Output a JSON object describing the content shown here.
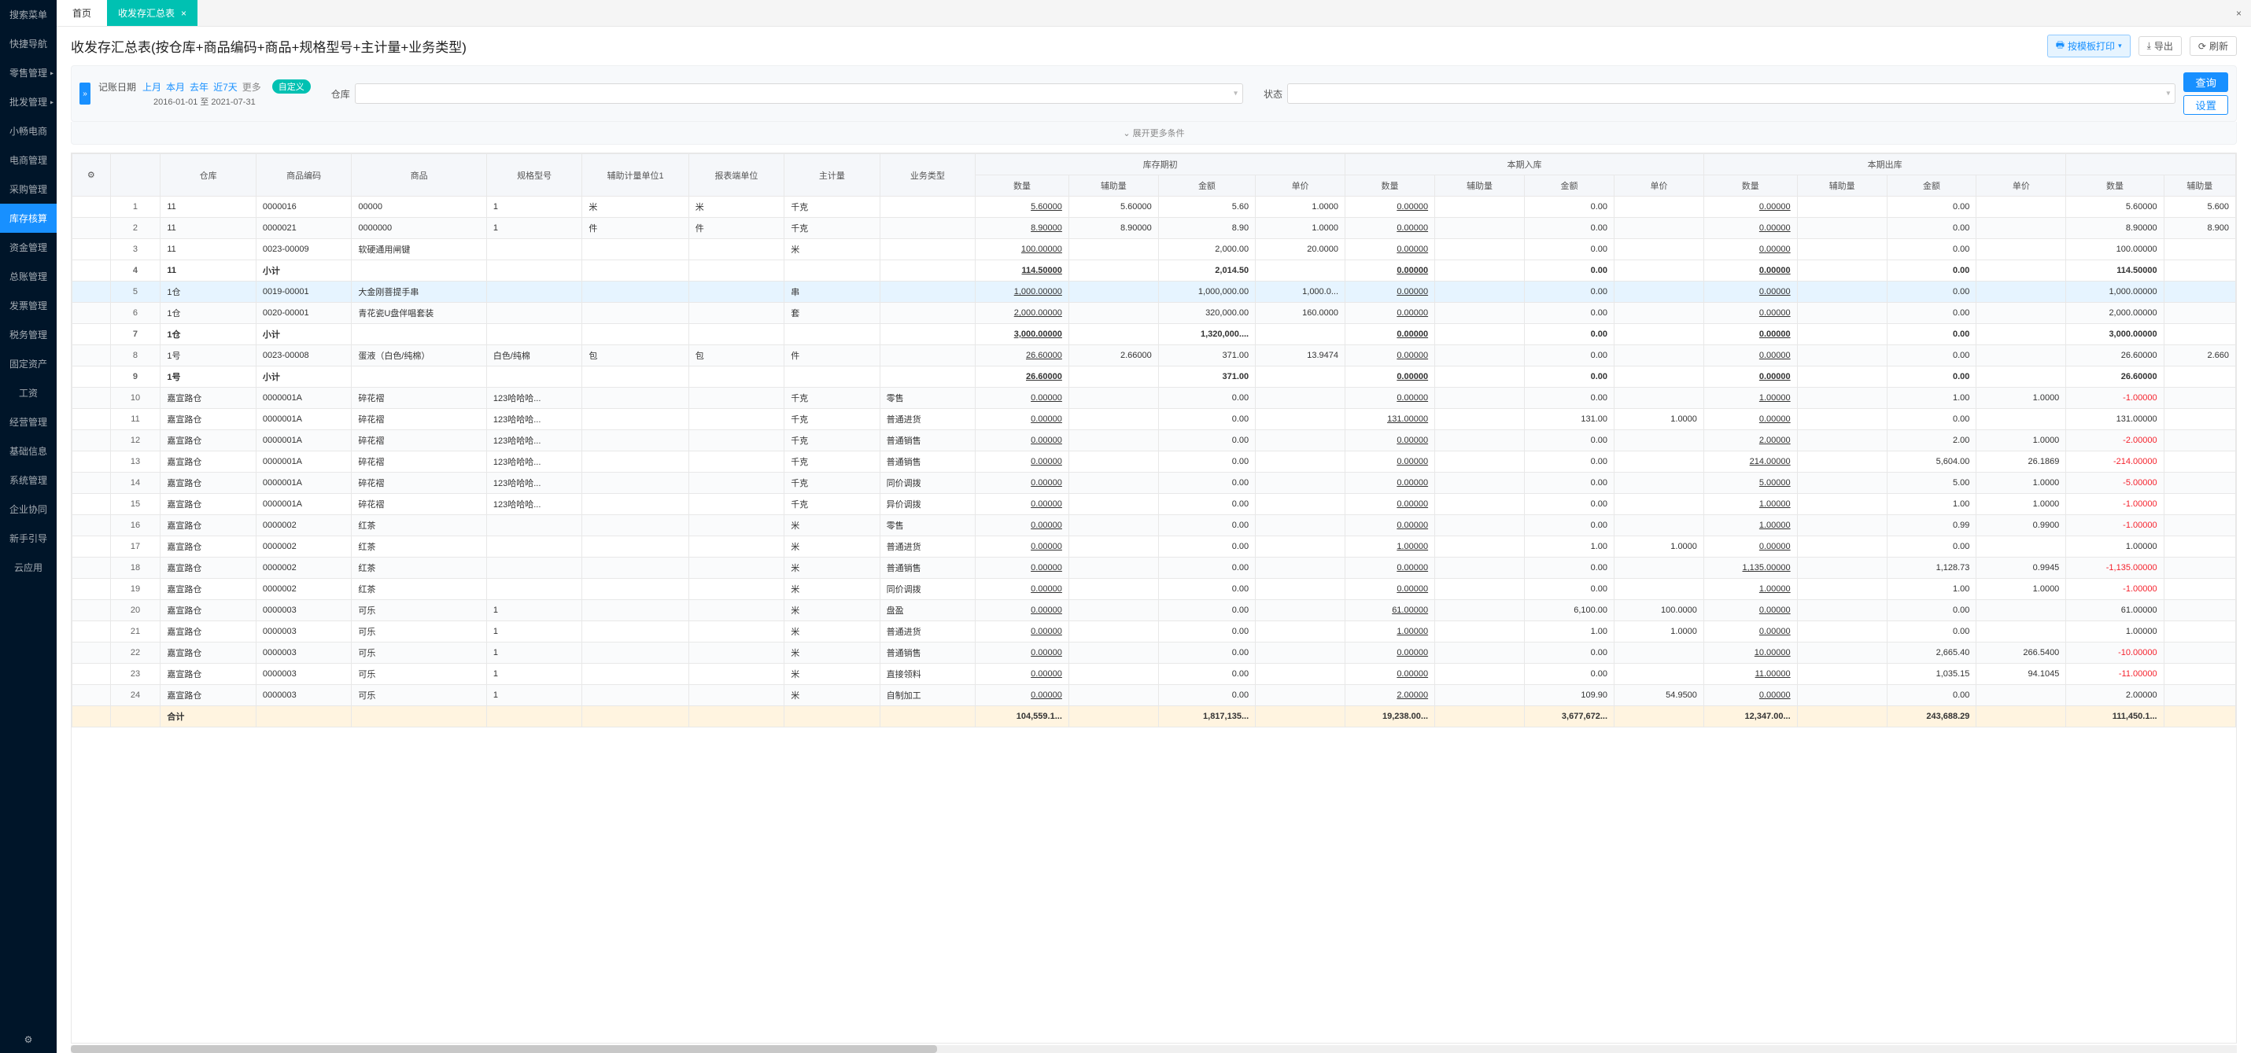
{
  "sidebar": {
    "items": [
      {
        "label": "搜索菜单"
      },
      {
        "label": "快捷导航"
      },
      {
        "label": "零售管理",
        "arrow": true
      },
      {
        "label": "批发管理",
        "arrow": true
      },
      {
        "label": "小畅电商"
      },
      {
        "label": "电商管理"
      },
      {
        "label": "采购管理"
      },
      {
        "label": "库存核算",
        "active": true
      },
      {
        "label": "资金管理"
      },
      {
        "label": "总账管理"
      },
      {
        "label": "发票管理"
      },
      {
        "label": "税务管理"
      },
      {
        "label": "固定资产"
      },
      {
        "label": "工资"
      },
      {
        "label": "经营管理"
      },
      {
        "label": "基础信息"
      },
      {
        "label": "系统管理"
      },
      {
        "label": "企业协同"
      },
      {
        "label": "新手引导"
      },
      {
        "label": "云应用"
      }
    ]
  },
  "tabs": {
    "home": "首页",
    "active": "收发存汇总表",
    "close_all": "×"
  },
  "header": {
    "title": "收发存汇总表(按仓库+商品编码+商品+规格型号+主计量+业务类型)",
    "print": "按模板打印",
    "export": "导出",
    "refresh": "刷新"
  },
  "filter": {
    "date_label": "记账日期",
    "quick": [
      "上月",
      "本月",
      "去年",
      "近7天",
      "更多"
    ],
    "pill": "自定义",
    "range": "2016-01-01 至 2021-07-31",
    "f1": "仓库",
    "f2": "状态",
    "search": "查询",
    "setting": "设置",
    "expand": "展开更多条件"
  },
  "table": {
    "group_headers": [
      "库存期初",
      "本期入库",
      "本期出库"
    ],
    "cols": [
      "仓库",
      "商品编码",
      "商品",
      "规格型号",
      "辅助计量单位1",
      "报表端单位",
      "主计量",
      "业务类型"
    ],
    "num_cols": [
      "数量",
      "辅助量",
      "金额",
      "单价"
    ],
    "rows": [
      {
        "idx": "1",
        "c": [
          "11",
          "0000016",
          "00000",
          "1",
          "米",
          "米",
          "千克",
          ""
        ],
        "n": [
          "5.60000",
          "5.60000",
          "5.60",
          "1.0000",
          "0.00000",
          "",
          "0.00",
          "",
          "0.00000",
          "",
          "0.00",
          "",
          "5.60000",
          "5.600"
        ]
      },
      {
        "idx": "2",
        "c": [
          "11",
          "0000021",
          "0000000",
          "1",
          "件",
          "件",
          "千克",
          ""
        ],
        "n": [
          "8.90000",
          "8.90000",
          "8.90",
          "1.0000",
          "0.00000",
          "",
          "0.00",
          "",
          "0.00000",
          "",
          "0.00",
          "",
          "8.90000",
          "8.900"
        ]
      },
      {
        "idx": "3",
        "c": [
          "11",
          "0023-00009",
          "软硬通用闸键",
          "",
          "",
          "",
          "米",
          ""
        ],
        "n": [
          "100.00000",
          "",
          "2,000.00",
          "20.0000",
          "0.00000",
          "",
          "0.00",
          "",
          "0.00000",
          "",
          "0.00",
          "",
          "100.00000",
          ""
        ]
      },
      {
        "idx": "4",
        "sub": true,
        "c": [
          "11",
          "小计",
          "",
          "",
          "",
          "",
          "",
          ""
        ],
        "n": [
          "114.50000",
          "",
          "2,014.50",
          "",
          "0.00000",
          "",
          "0.00",
          "",
          "0.00000",
          "",
          "0.00",
          "",
          "114.50000",
          ""
        ]
      },
      {
        "idx": "5",
        "hl": true,
        "c": [
          "1仓",
          "0019-00001",
          "大金刚菩提手串",
          "",
          "",
          "",
          "串",
          ""
        ],
        "n": [
          "1,000.00000",
          "",
          "1,000,000.00",
          "1,000.0...",
          "0.00000",
          "",
          "0.00",
          "",
          "0.00000",
          "",
          "0.00",
          "",
          "1,000.00000",
          ""
        ]
      },
      {
        "idx": "6",
        "c": [
          "1仓",
          "0020-00001",
          "青花瓷U盘伴唱套装",
          "",
          "",
          "",
          "套",
          ""
        ],
        "n": [
          "2,000.00000",
          "",
          "320,000.00",
          "160.0000",
          "0.00000",
          "",
          "0.00",
          "",
          "0.00000",
          "",
          "0.00",
          "",
          "2,000.00000",
          ""
        ]
      },
      {
        "idx": "7",
        "sub": true,
        "c": [
          "1仓",
          "小计",
          "",
          "",
          "",
          "",
          "",
          ""
        ],
        "n": [
          "3,000.00000",
          "",
          "1,320,000....",
          "",
          "0.00000",
          "",
          "0.00",
          "",
          "0.00000",
          "",
          "0.00",
          "",
          "3,000.00000",
          ""
        ]
      },
      {
        "idx": "8",
        "c": [
          "1号",
          "0023-00008",
          "蛋液（白色/纯棉）",
          "白色/纯棉",
          "包",
          "包",
          "件",
          ""
        ],
        "n": [
          "26.60000",
          "2.66000",
          "371.00",
          "13.9474",
          "0.00000",
          "",
          "0.00",
          "",
          "0.00000",
          "",
          "0.00",
          "",
          "26.60000",
          "2.660"
        ]
      },
      {
        "idx": "9",
        "sub": true,
        "c": [
          "1号",
          "小计",
          "",
          "",
          "",
          "",
          "",
          ""
        ],
        "n": [
          "26.60000",
          "",
          "371.00",
          "",
          "0.00000",
          "",
          "0.00",
          "",
          "0.00000",
          "",
          "0.00",
          "",
          "26.60000",
          ""
        ]
      },
      {
        "idx": "10",
        "c": [
          "嘉宣路仓",
          "0000001A",
          "碎花褶",
          "123哈哈哈...",
          "",
          "",
          "千克",
          "零售"
        ],
        "n": [
          "0.00000",
          "",
          "0.00",
          "",
          "0.00000",
          "",
          "0.00",
          "",
          "1.00000",
          "",
          "1.00",
          "1.0000",
          "-1.00000",
          ""
        ],
        "neg": [
          12
        ]
      },
      {
        "idx": "11",
        "c": [
          "嘉宣路仓",
          "0000001A",
          "碎花褶",
          "123哈哈哈...",
          "",
          "",
          "千克",
          "普通进货"
        ],
        "n": [
          "0.00000",
          "",
          "0.00",
          "",
          "131.00000",
          "",
          "131.00",
          "1.0000",
          "0.00000",
          "",
          "0.00",
          "",
          "131.00000",
          ""
        ]
      },
      {
        "idx": "12",
        "c": [
          "嘉宣路仓",
          "0000001A",
          "碎花褶",
          "123哈哈哈...",
          "",
          "",
          "千克",
          "普通销售"
        ],
        "n": [
          "0.00000",
          "",
          "0.00",
          "",
          "0.00000",
          "",
          "0.00",
          "",
          "2.00000",
          "",
          "2.00",
          "1.0000",
          "-2.00000",
          ""
        ],
        "neg": [
          12
        ]
      },
      {
        "idx": "13",
        "c": [
          "嘉宣路仓",
          "0000001A",
          "碎花褶",
          "123哈哈哈...",
          "",
          "",
          "千克",
          "普通销售"
        ],
        "n": [
          "0.00000",
          "",
          "0.00",
          "",
          "0.00000",
          "",
          "0.00",
          "",
          "214.00000",
          "",
          "5,604.00",
          "26.1869",
          "-214.00000",
          ""
        ],
        "neg": [
          12
        ]
      },
      {
        "idx": "14",
        "c": [
          "嘉宣路仓",
          "0000001A",
          "碎花褶",
          "123哈哈哈...",
          "",
          "",
          "千克",
          "同价调拨"
        ],
        "n": [
          "0.00000",
          "",
          "0.00",
          "",
          "0.00000",
          "",
          "0.00",
          "",
          "5.00000",
          "",
          "5.00",
          "1.0000",
          "-5.00000",
          ""
        ],
        "neg": [
          12
        ]
      },
      {
        "idx": "15",
        "c": [
          "嘉宣路仓",
          "0000001A",
          "碎花褶",
          "123哈哈哈...",
          "",
          "",
          "千克",
          "异价调拨"
        ],
        "n": [
          "0.00000",
          "",
          "0.00",
          "",
          "0.00000",
          "",
          "0.00",
          "",
          "1.00000",
          "",
          "1.00",
          "1.0000",
          "-1.00000",
          ""
        ],
        "neg": [
          12
        ]
      },
      {
        "idx": "16",
        "c": [
          "嘉宣路仓",
          "0000002",
          "红茶",
          "",
          "",
          "",
          "米",
          "零售"
        ],
        "n": [
          "0.00000",
          "",
          "0.00",
          "",
          "0.00000",
          "",
          "0.00",
          "",
          "1.00000",
          "",
          "0.99",
          "0.9900",
          "-1.00000",
          ""
        ],
        "neg": [
          12
        ]
      },
      {
        "idx": "17",
        "c": [
          "嘉宣路仓",
          "0000002",
          "红茶",
          "",
          "",
          "",
          "米",
          "普通进货"
        ],
        "n": [
          "0.00000",
          "",
          "0.00",
          "",
          "1.00000",
          "",
          "1.00",
          "1.0000",
          "0.00000",
          "",
          "0.00",
          "",
          "1.00000",
          ""
        ]
      },
      {
        "idx": "18",
        "c": [
          "嘉宣路仓",
          "0000002",
          "红茶",
          "",
          "",
          "",
          "米",
          "普通销售"
        ],
        "n": [
          "0.00000",
          "",
          "0.00",
          "",
          "0.00000",
          "",
          "0.00",
          "",
          "1,135.00000",
          "",
          "1,128.73",
          "0.9945",
          "-1,135.00000",
          ""
        ],
        "neg": [
          12
        ]
      },
      {
        "idx": "19",
        "c": [
          "嘉宣路仓",
          "0000002",
          "红茶",
          "",
          "",
          "",
          "米",
          "同价调拨"
        ],
        "n": [
          "0.00000",
          "",
          "0.00",
          "",
          "0.00000",
          "",
          "0.00",
          "",
          "1.00000",
          "",
          "1.00",
          "1.0000",
          "-1.00000",
          ""
        ],
        "neg": [
          12
        ]
      },
      {
        "idx": "20",
        "c": [
          "嘉宣路仓",
          "0000003",
          "可乐",
          "1",
          "",
          "",
          "米",
          "盘盈"
        ],
        "n": [
          "0.00000",
          "",
          "0.00",
          "",
          "61.00000",
          "",
          "6,100.00",
          "100.0000",
          "0.00000",
          "",
          "0.00",
          "",
          "61.00000",
          ""
        ]
      },
      {
        "idx": "21",
        "c": [
          "嘉宣路仓",
          "0000003",
          "可乐",
          "1",
          "",
          "",
          "米",
          "普通进货"
        ],
        "n": [
          "0.00000",
          "",
          "0.00",
          "",
          "1.00000",
          "",
          "1.00",
          "1.0000",
          "0.00000",
          "",
          "0.00",
          "",
          "1.00000",
          ""
        ]
      },
      {
        "idx": "22",
        "c": [
          "嘉宣路仓",
          "0000003",
          "可乐",
          "1",
          "",
          "",
          "米",
          "普通销售"
        ],
        "n": [
          "0.00000",
          "",
          "0.00",
          "",
          "0.00000",
          "",
          "0.00",
          "",
          "10.00000",
          "",
          "2,665.40",
          "266.5400",
          "-10.00000",
          ""
        ],
        "neg": [
          12
        ]
      },
      {
        "idx": "23",
        "c": [
          "嘉宣路仓",
          "0000003",
          "可乐",
          "1",
          "",
          "",
          "米",
          "直接领料"
        ],
        "n": [
          "0.00000",
          "",
          "0.00",
          "",
          "0.00000",
          "",
          "0.00",
          "",
          "11.00000",
          "",
          "1,035.15",
          "94.1045",
          "-11.00000",
          ""
        ],
        "neg": [
          12
        ]
      },
      {
        "idx": "24",
        "c": [
          "嘉宣路仓",
          "0000003",
          "可乐",
          "1",
          "",
          "",
          "米",
          "自制加工"
        ],
        "n": [
          "0.00000",
          "",
          "0.00",
          "",
          "2.00000",
          "",
          "109.90",
          "54.9500",
          "0.00000",
          "",
          "0.00",
          "",
          "2.00000",
          ""
        ]
      }
    ],
    "grand": {
      "label": "合计",
      "n": [
        "104,559.1...",
        "",
        "1,817,135...",
        "",
        "19,238.00...",
        "",
        "3,677,672...",
        "",
        "12,347.00...",
        "",
        "243,688.29",
        "",
        "111,450.1...",
        ""
      ]
    },
    "underline_cols": [
      4,
      8
    ]
  }
}
